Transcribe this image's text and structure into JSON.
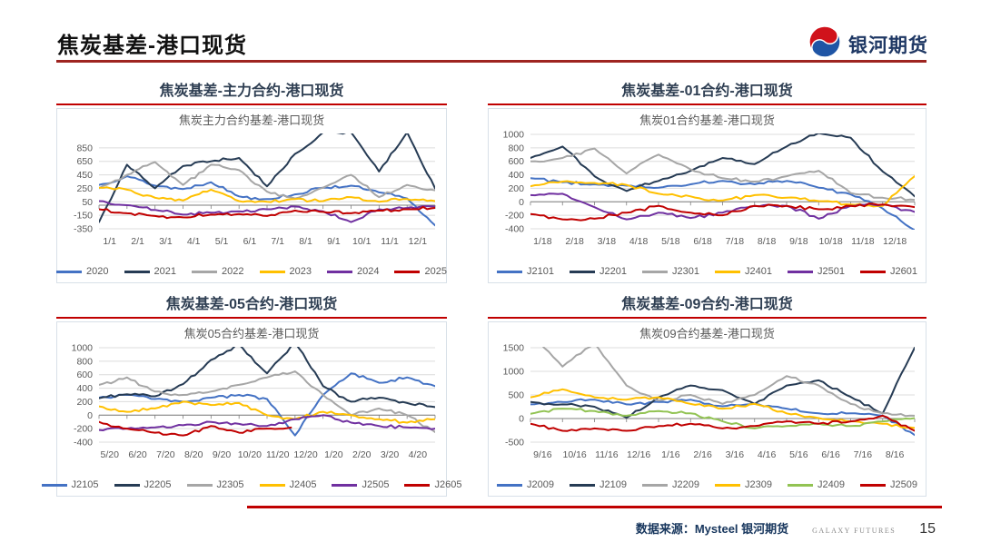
{
  "page": {
    "title": "焦炭基差-港口现货",
    "logo": {
      "text": "银河期货"
    },
    "footer": {
      "source": "数据来源：Mysteel 银河期货",
      "brand": "GALAXY FUTURES",
      "page_number": "15"
    }
  },
  "colors": {
    "accent_red": "#C00000",
    "header_line": "#9E2420",
    "panel_title": "#2E3E52",
    "axis_text": "#595959",
    "gridline": "#DCDCDC",
    "logo_blue": "#1F3864",
    "logo_red": "#D0121B"
  },
  "charts": [
    {
      "panel_title": "焦炭基差-主力合约-港口现货",
      "chart_data": {
        "type": "line",
        "title": "焦炭主力合约基差-港口现货",
        "x_labels": [
          "1/1",
          "2/1",
          "3/1",
          "4/1",
          "5/1",
          "6/1",
          "7/1",
          "8/1",
          "9/1",
          "10/1",
          "11/1",
          "12/1"
        ],
        "ylim": [
          -350,
          1050
        ],
        "y_ticks": [
          850,
          650,
          450,
          250,
          50,
          -150,
          -350
        ],
        "grid": true,
        "legend_position": "bottom",
        "noise": 26,
        "series": [
          {
            "name": "2020",
            "color": "#4472C4",
            "values": [
              300,
              430,
              290,
              240,
              340,
              130,
              90,
              160,
              260,
              290,
              190,
              100,
              -300
            ]
          },
          {
            "name": "2021",
            "color": "#263B54",
            "values": [
              -250,
              600,
              250,
              580,
              650,
              700,
              280,
              760,
              1080,
              1080,
              500,
              1080,
              250
            ]
          },
          {
            "name": "2022",
            "color": "#A6A6A6",
            "values": [
              250,
              450,
              640,
              300,
              600,
              520,
              200,
              100,
              260,
              450,
              120,
              300,
              220
            ]
          },
          {
            "name": "2023",
            "color": "#FFC000",
            "values": [
              260,
              230,
              110,
              70,
              230,
              60,
              50,
              90,
              60,
              120,
              50,
              90,
              60
            ]
          },
          {
            "name": "2024",
            "color": "#7030A0",
            "values": [
              60,
              0,
              -70,
              -140,
              -110,
              -90,
              -60,
              -20,
              -90,
              -250,
              -60,
              -40,
              -20
            ]
          },
          {
            "name": "2025",
            "color": "#C00000",
            "values": [
              -60,
              -120,
              -160,
              -180,
              -140,
              -130,
              -160,
              -80,
              -100,
              -120,
              -80,
              -60,
              -40
            ]
          }
        ]
      }
    },
    {
      "panel_title": "焦炭基差-01合约-港口现货",
      "chart_data": {
        "type": "line",
        "title": "焦炭01合约基差-港口现货",
        "x_labels": [
          "1/18",
          "2/18",
          "3/18",
          "4/18",
          "5/18",
          "6/18",
          "7/18",
          "8/18",
          "9/18",
          "10/18",
          "11/18",
          "12/18"
        ],
        "ylim": [
          -400,
          1000
        ],
        "y_ticks": [
          1000,
          800,
          600,
          400,
          200,
          0,
          -200,
          -400
        ],
        "grid": true,
        "legend_position": "bottom",
        "noise": 26,
        "series": [
          {
            "name": "J2101",
            "color": "#4472C4",
            "values": [
              350,
              290,
              260,
              240,
              210,
              260,
              310,
              260,
              310,
              210,
              110,
              -100,
              -420
            ]
          },
          {
            "name": "J2201",
            "color": "#263B54",
            "values": [
              650,
              820,
              380,
              160,
              310,
              460,
              650,
              560,
              820,
              1020,
              950,
              450,
              80
            ]
          },
          {
            "name": "J2301",
            "color": "#A6A6A6",
            "values": [
              600,
              650,
              790,
              420,
              700,
              480,
              350,
              300,
              380,
              460,
              130,
              60,
              30
            ]
          },
          {
            "name": "J2401",
            "color": "#FFC000",
            "values": [
              230,
              300,
              280,
              250,
              120,
              80,
              20,
              100,
              60,
              10,
              -40,
              -60,
              380
            ]
          },
          {
            "name": "J2501",
            "color": "#7030A0",
            "values": [
              100,
              120,
              -80,
              -260,
              -160,
              -240,
              -160,
              -60,
              -60,
              -250,
              -60,
              -40,
              -150
            ]
          },
          {
            "name": "J2601",
            "color": "#C00000",
            "values": [
              -180,
              -260,
              -250,
              -160,
              -60,
              -160,
              -200,
              -60,
              -60,
              -110,
              -60,
              -40,
              -80
            ]
          }
        ]
      }
    },
    {
      "panel_title": "焦炭基差-05合约-港口现货",
      "chart_data": {
        "type": "line",
        "title": "焦炭05合约基差-港口现货",
        "x_labels": [
          "5/20",
          "6/20",
          "7/20",
          "8/20",
          "9/20",
          "10/20",
          "11/20",
          "12/20",
          "1/20",
          "2/20",
          "3/20",
          "4/20"
        ],
        "ylim": [
          -400,
          1000
        ],
        "y_ticks": [
          1000,
          800,
          600,
          400,
          200,
          0,
          -200,
          -400
        ],
        "grid": true,
        "legend_position": "bottom",
        "noise": 26,
        "series": [
          {
            "name": "J2105",
            "color": "#4472C4",
            "values": [
              260,
              300,
              240,
              200,
              260,
              300,
              240,
              -300,
              300,
              620,
              480,
              560,
              430
            ]
          },
          {
            "name": "J2205",
            "color": "#263B54",
            "values": [
              250,
              310,
              280,
              460,
              820,
              1050,
              620,
              1080,
              430,
              200,
              260,
              180,
              120
            ]
          },
          {
            "name": "J2305",
            "color": "#A6A6A6",
            "values": [
              450,
              560,
              350,
              300,
              350,
              450,
              560,
              650,
              300,
              0,
              100,
              0,
              -250
            ]
          },
          {
            "name": "J2405",
            "color": "#FFC000",
            "values": [
              130,
              50,
              100,
              200,
              150,
              180,
              0,
              -60,
              50,
              0,
              -60,
              -110,
              -60
            ]
          },
          {
            "name": "J2505",
            "color": "#7030A0",
            "values": [
              -220,
              -200,
              -180,
              -150,
              -100,
              -130,
              -160,
              -60,
              0,
              -110,
              -160,
              -180,
              -200
            ]
          },
          {
            "name": "J2605",
            "color": "#C00000",
            "values": [
              -100,
              -200,
              -260,
              -300,
              -160,
              -260,
              -200,
              -180,
              null,
              null,
              null,
              null,
              null
            ]
          }
        ]
      }
    },
    {
      "panel_title": "焦炭基差-09合约-港口现货",
      "chart_data": {
        "type": "line",
        "title": "焦炭09合约基差-港口现货",
        "x_labels": [
          "9/16",
          "10/16",
          "11/16",
          "12/16",
          "1/16",
          "2/16",
          "3/16",
          "4/16",
          "5/16",
          "6/16",
          "7/16",
          "8/16"
        ],
        "ylim": [
          -500,
          1500
        ],
        "y_ticks": [
          1500,
          1000,
          500,
          0,
          -500
        ],
        "grid": true,
        "legend_position": "bottom",
        "noise": 32,
        "series": [
          {
            "name": "J2009",
            "color": "#4472C4",
            "values": [
              300,
              350,
              400,
              300,
              350,
              400,
              260,
              310,
              210,
              110,
              110,
              60,
              -350
            ]
          },
          {
            "name": "J2109",
            "color": "#263B54",
            "values": [
              350,
              300,
              250,
              20,
              450,
              700,
              600,
              310,
              700,
              810,
              460,
              110,
              1500
            ]
          },
          {
            "name": "J2209",
            "color": "#A6A6A6",
            "values": [
              1800,
              1100,
              1600,
              700,
              380,
              500,
              310,
              500,
              900,
              700,
              310,
              110,
              60
            ]
          },
          {
            "name": "J2309",
            "color": "#FFC000",
            "values": [
              450,
              620,
              450,
              400,
              450,
              310,
              210,
              310,
              110,
              10,
              -60,
              -110,
              -200
            ]
          },
          {
            "name": "J2409",
            "color": "#92C353",
            "values": [
              100,
              210,
              160,
              60,
              160,
              110,
              -60,
              -210,
              -160,
              -110,
              -160,
              -60,
              10
            ]
          },
          {
            "name": "J2509",
            "color": "#C00000",
            "values": [
              -110,
              -260,
              -210,
              -260,
              -160,
              -110,
              -210,
              -160,
              -60,
              -110,
              -60,
              60,
              -260
            ]
          }
        ]
      }
    }
  ]
}
